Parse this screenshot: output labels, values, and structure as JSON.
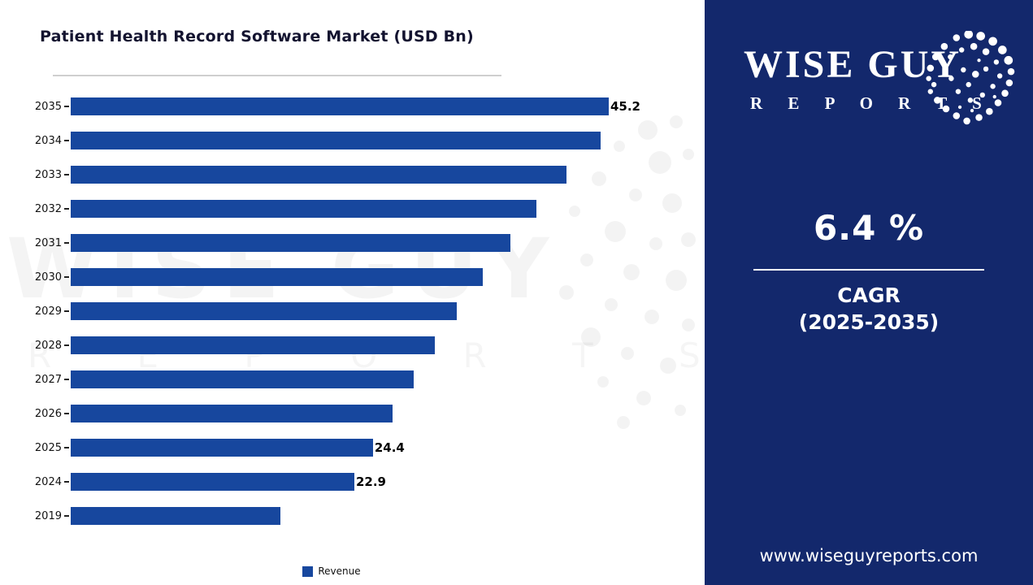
{
  "chart": {
    "title": "Patient Health Record Software Market (USD Bn)",
    "legend_label": "Revenue",
    "bar_color": "#17479E"
  },
  "chart_data": {
    "type": "bar",
    "orientation": "horizontal",
    "title": "Patient Health Record Software Market (USD Bn)",
    "categories": [
      "2035",
      "2034",
      "2033",
      "2032",
      "2031",
      "2030",
      "2029",
      "2028",
      "2027",
      "2026",
      "2025",
      "2024",
      "2019"
    ],
    "series": [
      {
        "name": "Revenue",
        "values": [
          45.2,
          42.8,
          40.0,
          37.6,
          35.5,
          33.3,
          31.2,
          29.4,
          27.7,
          26.0,
          24.4,
          22.9,
          16.9
        ]
      }
    ],
    "data_labels": [
      "45.2",
      "",
      "",
      "",
      "",
      "",
      "",
      "",
      "",
      "",
      "24.4",
      "22.9",
      ""
    ],
    "xlim": [
      0,
      46
    ],
    "grid": false,
    "legend_position": "bottom"
  },
  "brand_panel": {
    "logo_text_line1": "WISE GUY",
    "logo_text_line2": "R E P O R T S",
    "cagr_value": "6.4 %",
    "cagr_label_line1": "CAGR",
    "cagr_label_line2": "(2025-2035)",
    "website": "www.wiseguyreports.com",
    "background_color": "#13286C"
  },
  "watermark": {
    "line1": "WISE GUY",
    "line2": "R E P O R T S"
  }
}
